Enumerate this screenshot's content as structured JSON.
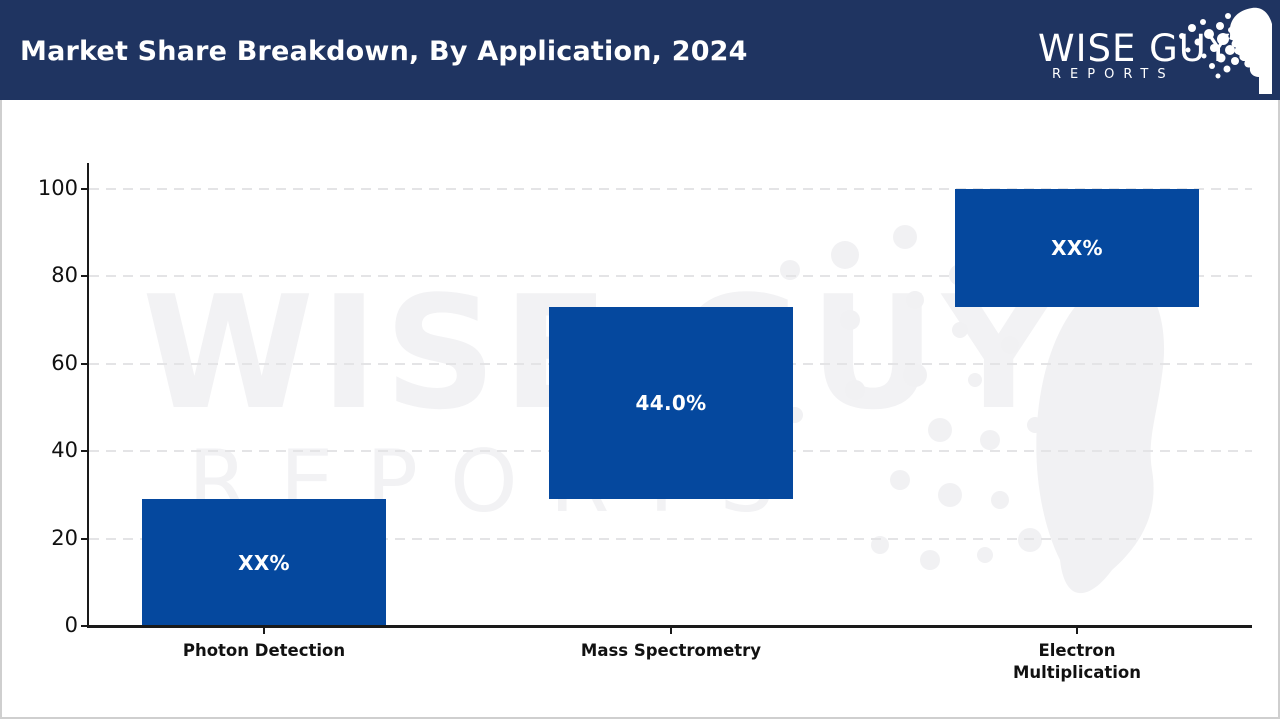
{
  "header": {
    "title": "Market Share Breakdown, By Application, 2024",
    "bg_color": "#1f3461",
    "logo": {
      "line1": "WISE GUY",
      "line2": "REPORTS"
    }
  },
  "watermark": {
    "line1": "WISE GUY",
    "line2": "REPORTS"
  },
  "chart_data": {
    "type": "bar",
    "variant": "floating-segment",
    "title": "Market Share Breakdown, By Application, 2024",
    "categories": [
      "Photon Detection",
      "Mass Spectrometry",
      "Electron\nMultiplication"
    ],
    "segments": [
      {
        "category": "Photon Detection",
        "start": 0,
        "end": 29,
        "value_label": "XX%"
      },
      {
        "category": "Mass Spectrometry",
        "start": 29,
        "end": 73,
        "value_label": "44.0%"
      },
      {
        "category": "Electron Multiplication",
        "start": 73,
        "end": 99.8,
        "value_label": "XX%"
      }
    ],
    "yticks": [
      0,
      20,
      40,
      60,
      80,
      100
    ],
    "ylim": [
      0,
      105.8
    ],
    "xlabel": "",
    "ylabel": "",
    "grid": "horizontal-dashed",
    "legend": "none",
    "bar_color": "#05489e",
    "bar_label_color": "#ffffff",
    "axis_color": "#1a1a1a",
    "gridline_color": "#e4e4e6"
  }
}
